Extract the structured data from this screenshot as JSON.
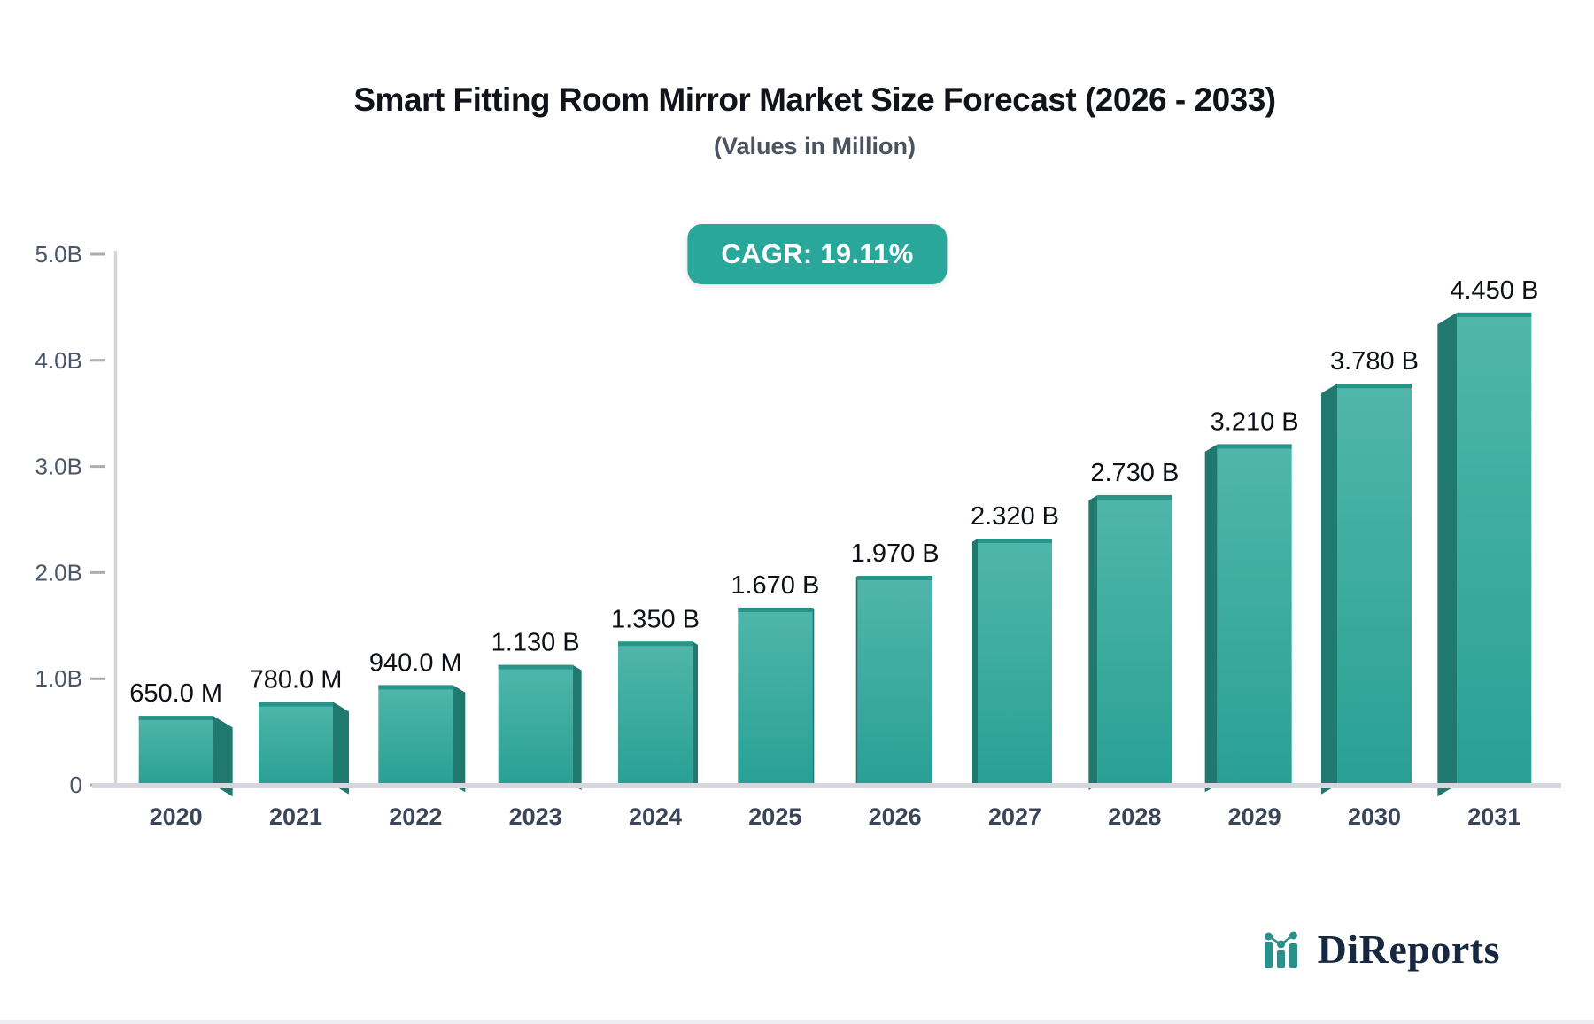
{
  "header": {
    "title": "Smart Fitting Room Mirror Market Size Forecast (2026 - 2033)",
    "subtitle": "(Values in Million)",
    "cagr_badge": "CAGR: 19.11%"
  },
  "brand": {
    "name": "DiReports",
    "icon": "bar-chart-logo-icon"
  },
  "colors": {
    "bar_front_top": "#50b6ab",
    "bar_front_bottom": "#29a094",
    "bar_side": "#20796f",
    "bar_top_strip": "#28948a",
    "badge_bg": "#2aa79b",
    "badge_text": "#ffffff",
    "axis_line": "#d4d5db",
    "baseline": "#d6d7dd",
    "tick_dash": "#a8aeb8",
    "ytick_text": "#49566a",
    "year_text": "#3a4557",
    "value_text": "#0d1117",
    "logo_teal": "#2c8f8a",
    "logo_navy": "#172940"
  },
  "chart_data": {
    "type": "bar",
    "title": "Smart Fitting Room Mirror Market Size Forecast (2026 - 2033)",
    "subtitle": "(Values in Million)",
    "categories": [
      "2020",
      "2021",
      "2022",
      "2023",
      "2024",
      "2025",
      "2026",
      "2027",
      "2028",
      "2029",
      "2030",
      "2031"
    ],
    "values": [
      0.65,
      0.78,
      0.94,
      1.13,
      1.35,
      1.67,
      1.97,
      2.32,
      2.73,
      3.21,
      3.78,
      4.45
    ],
    "value_labels": [
      "650.0 M",
      "780.0 M",
      "940.0 M",
      "1.130 B",
      "1.350 B",
      "1.670 B",
      "1.970 B",
      "2.320 B",
      "2.730 B",
      "3.210 B",
      "3.780 B",
      "4.450 B"
    ],
    "xlabel": "",
    "ylabel": "",
    "ylim": [
      0,
      5
    ],
    "yticks": [
      0,
      1,
      2,
      3,
      4,
      5
    ],
    "ytick_labels": [
      "0",
      "1.0B",
      "2.0B",
      "3.0B",
      "4.0B",
      "5.0B"
    ],
    "grid": false,
    "legend": false,
    "bar_style": "pseudo-3d, side faces angled toward chart center, teal gradient"
  }
}
